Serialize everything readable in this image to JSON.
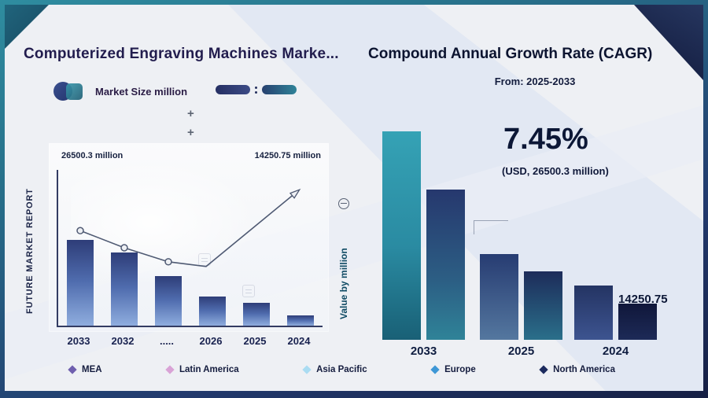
{
  "header": {
    "left_title": "Computerized Engraving Machines Marke...",
    "right_title": "Compound Annual Growth Rate (CAGR)",
    "right_subtitle": "From: 2025-2033"
  },
  "left_panel": {
    "legend_label": "Market Size million",
    "side_label": "FUTURE MARKET REPORT",
    "value_axis_label": "Value by million"
  },
  "cagr": {
    "value": "7.45%",
    "basis": "(USD, 26500.3 million)"
  },
  "chart_data": [
    {
      "type": "bar",
      "title": "Market Size million",
      "categories": [
        "2033",
        "2032",
        ".....",
        "2026",
        "2025",
        "2024"
      ],
      "values": [
        26500.3,
        24400,
        20600,
        17300,
        16300,
        14250.75
      ],
      "ylim": [
        12600,
        27600
      ],
      "ylabel": "Value by million",
      "annotations": [
        "26500.3 million",
        "14250.75 million"
      ],
      "trend_note": "line markers decline from 2033 to 2026 then arrow rises toward 14250.75 million"
    },
    {
      "type": "bar",
      "title": "Compound Annual Growth Rate (CAGR)",
      "subtitle": "From: 2025-2033",
      "cagr": "7.45%",
      "categories": [
        "2033",
        "2025",
        "2024"
      ],
      "series": [
        {
          "name": "primary",
          "values": [
            26500,
            10900,
            6900
          ]
        },
        {
          "name": "secondary",
          "values": [
            19100,
            8700,
            4600
          ]
        }
      ],
      "ylim": [
        0,
        28500
      ],
      "annotation": "14250.75"
    }
  ],
  "legend": {
    "items": [
      {
        "label": "MEA",
        "color": "#6f5fae"
      },
      {
        "label": "Latin America",
        "color": "#d9a3d6"
      },
      {
        "label": "Asia Pacific",
        "color": "#aadcf2"
      },
      {
        "label": "Europe",
        "color": "#3e97d6"
      },
      {
        "label": "North America",
        "color": "#1c2b5e"
      }
    ]
  },
  "colors": {
    "accent_teal": "#2e8398",
    "accent_navy": "#1b2550"
  }
}
